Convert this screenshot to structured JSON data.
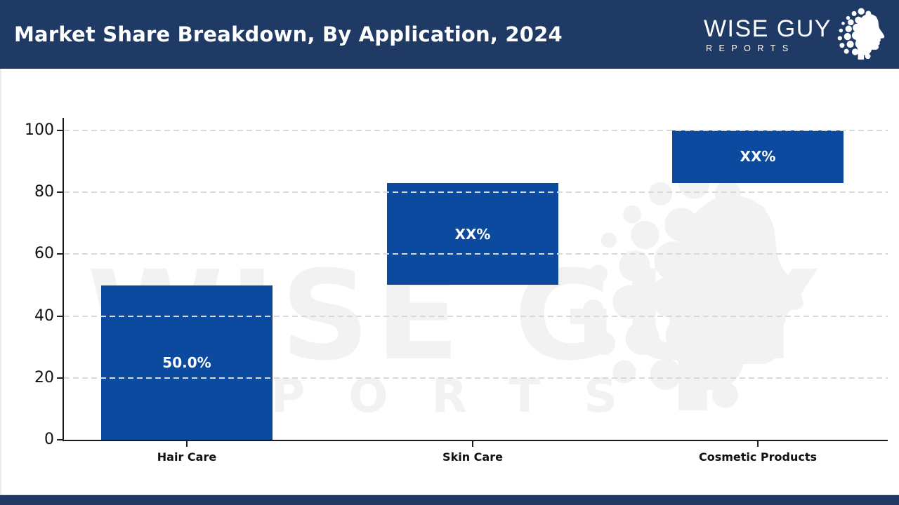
{
  "header": {
    "title": "Market Share Breakdown, By Application, 2024"
  },
  "logo": {
    "wordmark": "WISE GUY",
    "subtitle": "REPORTS"
  },
  "watermark": {
    "wordmark": "WISE GUY",
    "subtitle": "REPORTS"
  },
  "colors": {
    "header_bg": "#203a66",
    "footer_bg": "#203a66",
    "bar": "#0b4a9f",
    "grid": "#d9d9d9",
    "axis": "#1c1c1c",
    "tick_label": "#111111",
    "bar_label": "#ffffff",
    "watermark": "#f2f2f2"
  },
  "chart_data": {
    "type": "bar",
    "variant": "floating-segment (waterfall-style market share breakdown)",
    "title": "Market Share Breakdown, By Application, 2024",
    "categories": [
      "Hair Care",
      "Skin Care",
      "Cosmetic Products"
    ],
    "series": [
      {
        "name": "Market share (%)",
        "bars": [
          {
            "category": "Hair Care",
            "start": 0,
            "end": 50,
            "label": "50.0%"
          },
          {
            "category": "Skin Care",
            "start": 50,
            "end": 83,
            "label": "XX%"
          },
          {
            "category": "Cosmetic Products",
            "start": 83,
            "end": 100,
            "label": "XX%"
          }
        ]
      }
    ],
    "ylim": [
      0,
      100
    ],
    "yticks": [
      0,
      20,
      40,
      60,
      80,
      100
    ],
    "xlabel": "",
    "ylabel": "",
    "grid": "horizontal dashed, drawn above bars",
    "legend": "none",
    "bar_color": "#0b4a9f"
  }
}
